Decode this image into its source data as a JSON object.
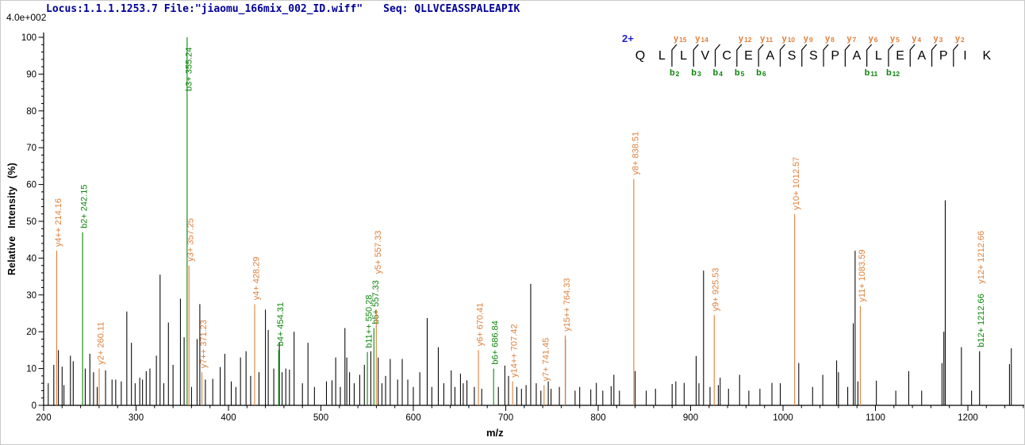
{
  "window": {
    "scale_label": "4.0e+002"
  },
  "header": {
    "locus_file": "Locus:1.1.1.1253.7 File:\"jiaomu_166mix_002_ID.wiff\"",
    "seq": "Seq: QLLVCEASSPALEAPIK"
  },
  "colors": {
    "y_ion": "#df7f3a",
    "b_ion": "#0b860b",
    "peak": "#000000",
    "header_text": "#000099",
    "charge_label": "#2222cc",
    "axis": "#000000"
  },
  "peptide_panel": {
    "charge_label": "2+",
    "residues": [
      "Q",
      "L",
      "L",
      "V",
      "C",
      "E",
      "A",
      "S",
      "S",
      "P",
      "A",
      "L",
      "E",
      "A",
      "P",
      "I",
      "K"
    ],
    "y_ion_gaps": [
      {
        "gap": 2,
        "ion": "y",
        "num": 15
      },
      {
        "gap": 3,
        "ion": "y",
        "num": 14
      },
      {
        "gap": 5,
        "ion": "y",
        "num": 12
      },
      {
        "gap": 6,
        "ion": "y",
        "num": 11
      },
      {
        "gap": 7,
        "ion": "y",
        "num": 10
      },
      {
        "gap": 8,
        "ion": "y",
        "num": 9
      },
      {
        "gap": 9,
        "ion": "y",
        "num": 8
      },
      {
        "gap": 10,
        "ion": "y",
        "num": 7
      },
      {
        "gap": 11,
        "ion": "y",
        "num": 6
      },
      {
        "gap": 12,
        "ion": "y",
        "num": 5
      },
      {
        "gap": 13,
        "ion": "y",
        "num": 4
      },
      {
        "gap": 14,
        "ion": "y",
        "num": 3
      },
      {
        "gap": 15,
        "ion": "y",
        "num": 2
      }
    ],
    "b_ion_gaps": [
      {
        "gap": 2,
        "ion": "b",
        "num": 2
      },
      {
        "gap": 3,
        "ion": "b",
        "num": 3
      },
      {
        "gap": 4,
        "ion": "b",
        "num": 4
      },
      {
        "gap": 5,
        "ion": "b",
        "num": 5
      },
      {
        "gap": 6,
        "ion": "b",
        "num": 6
      },
      {
        "gap": 11,
        "ion": "b",
        "num": 11
      },
      {
        "gap": 12,
        "ion": "b",
        "num": 12
      }
    ]
  },
  "chart_data": {
    "type": "bar",
    "xlabel": "m/z",
    "ylabel": "Relative Intensity (%)",
    "xlim": [
      200,
      1260
    ],
    "ylim": [
      0,
      100
    ],
    "x_tick_labels": [
      200,
      300,
      400,
      500,
      600,
      700,
      800,
      900,
      1000,
      1100,
      1200
    ],
    "y_tick_labels": [
      0,
      10,
      20,
      30,
      40,
      50,
      60,
      70,
      80,
      90,
      100
    ],
    "x_minor_tick_step": 20,
    "y_minor_tick_step": 2,
    "grid": false,
    "annotated_peaks": [
      {
        "label": "y4++ 214.16",
        "mz": 214.16,
        "intensity": 42,
        "series": "y"
      },
      {
        "label": "b2+ 242.15",
        "mz": 242.15,
        "intensity": 47,
        "series": "b"
      },
      {
        "label": "y2+ 260.11",
        "mz": 260.11,
        "intensity": 10,
        "series": "y"
      },
      {
        "label": "b3+ 355.24",
        "mz": 355.24,
        "intensity": 100,
        "series": "b",
        "label_dy": 73
      },
      {
        "label": "y3+ 357.25",
        "mz": 357.25,
        "intensity": 38,
        "series": "y"
      },
      {
        "label": "y7++ 371.23",
        "mz": 371.23,
        "intensity": 9,
        "series": "y"
      },
      {
        "label": "y4+ 428.29",
        "mz": 428.29,
        "intensity": 27.5,
        "series": "y"
      },
      {
        "label": "b4+ 454.31",
        "mz": 454.31,
        "intensity": 15,
        "series": "b"
      },
      {
        "label": "b11++ 550.28",
        "mz": 550.28,
        "intensity": 14.5,
        "series": "b"
      },
      {
        "label": "b5+ 557.33",
        "mz": 557.33,
        "intensity": 21,
        "series": "b"
      },
      {
        "label": "y5+ 557.33",
        "mz": 557.33,
        "intensity": 26,
        "series": "y",
        "x_offset": 3,
        "label_dy": -40
      },
      {
        "label": "y6+ 670.41",
        "mz": 670.41,
        "intensity": 15,
        "series": "y"
      },
      {
        "label": "b6+ 686.84",
        "mz": 686.84,
        "intensity": 10,
        "series": "b"
      },
      {
        "label": "y14++ 707.42",
        "mz": 707.42,
        "intensity": 6.5,
        "series": "y"
      },
      {
        "label": "y7+ 741.45",
        "mz": 741.45,
        "intensity": 5.5,
        "series": "y"
      },
      {
        "label": "y15++ 764.33",
        "mz": 764.33,
        "intensity": 19,
        "series": "y"
      },
      {
        "label": "y8+ 838.51",
        "mz": 838.51,
        "intensity": 61.5,
        "series": "y"
      },
      {
        "label": "y9+ 925.53",
        "mz": 925.53,
        "intensity": 24.5,
        "series": "y"
      },
      {
        "label": "y10+ 1012.57",
        "mz": 1012.57,
        "intensity": 52,
        "series": "y"
      },
      {
        "label": "y11+ 1083.59",
        "mz": 1083.59,
        "intensity": 27,
        "series": "y"
      },
      {
        "label": "b12+ 1212.66",
        "mz": 1212.66,
        "intensity": 14.7,
        "series": "b",
        "line_color": "#000000"
      },
      {
        "label": "y12+ 1212.66",
        "mz": 1212.66,
        "intensity": 14.7,
        "series": "y",
        "no_line": true,
        "label_dy": -80
      }
    ],
    "unannotated_peaks": [
      [
        205,
        6
      ],
      [
        211,
        11
      ],
      [
        216,
        15
      ],
      [
        220,
        10.5
      ],
      [
        222,
        5.5
      ],
      [
        229,
        13.5
      ],
      [
        232,
        12
      ],
      [
        245,
        10
      ],
      [
        250,
        14
      ],
      [
        254,
        9
      ],
      [
        258,
        5
      ],
      [
        267,
        9.5
      ],
      [
        274,
        7
      ],
      [
        278,
        7
      ],
      [
        284,
        6.5
      ],
      [
        290,
        25.5
      ],
      [
        295,
        17
      ],
      [
        299,
        6
      ],
      [
        304,
        7.5
      ],
      [
        307,
        7
      ],
      [
        311,
        9.3
      ],
      [
        315,
        10
      ],
      [
        322,
        13.5
      ],
      [
        326,
        35.5
      ],
      [
        330,
        6
      ],
      [
        335,
        22.5
      ],
      [
        340,
        11
      ],
      [
        348,
        29
      ],
      [
        352,
        18.5
      ],
      [
        360,
        5
      ],
      [
        366,
        18
      ],
      [
        369,
        27.5
      ],
      [
        375,
        7
      ],
      [
        383,
        7.2
      ],
      [
        391,
        10.4
      ],
      [
        396,
        14
      ],
      [
        403,
        6.5
      ],
      [
        408,
        5
      ],
      [
        413,
        13
      ],
      [
        419,
        14.7
      ],
      [
        424,
        8
      ],
      [
        433,
        9
      ],
      [
        440,
        26
      ],
      [
        443,
        20.5
      ],
      [
        449,
        10
      ],
      [
        455,
        17
      ],
      [
        458,
        9
      ],
      [
        462,
        10
      ],
      [
        466,
        9.7
      ],
      [
        471,
        20
      ],
      [
        480,
        6
      ],
      [
        486,
        17
      ],
      [
        493,
        5
      ],
      [
        506,
        6.5
      ],
      [
        512,
        6.8
      ],
      [
        516,
        13
      ],
      [
        521,
        5
      ],
      [
        526,
        21
      ],
      [
        528,
        13
      ],
      [
        531,
        9
      ],
      [
        536,
        6
      ],
      [
        542,
        8.3
      ],
      [
        547,
        11
      ],
      [
        554,
        14.7
      ],
      [
        562,
        13
      ],
      [
        566,
        6
      ],
      [
        570,
        8
      ],
      [
        575,
        12.6
      ],
      [
        583,
        7
      ],
      [
        588,
        12.6
      ],
      [
        594,
        7
      ],
      [
        600,
        5
      ],
      [
        607,
        9
      ],
      [
        615,
        23.7
      ],
      [
        620,
        5
      ],
      [
        627,
        15.8
      ],
      [
        633,
        6
      ],
      [
        641,
        9.5
      ],
      [
        645,
        5
      ],
      [
        651,
        8.6
      ],
      [
        654,
        6
      ],
      [
        658,
        6.8
      ],
      [
        666,
        5
      ],
      [
        674,
        4.5
      ],
      [
        692,
        5
      ],
      [
        699,
        10.8
      ],
      [
        703,
        8
      ],
      [
        712,
        5
      ],
      [
        717,
        4.5
      ],
      [
        722,
        5.5
      ],
      [
        727,
        33
      ],
      [
        733,
        6
      ],
      [
        738,
        4
      ],
      [
        746,
        6.5
      ],
      [
        749,
        4.5
      ],
      [
        758,
        5
      ],
      [
        764.5,
        18
      ],
      [
        775,
        4
      ],
      [
        780,
        5
      ],
      [
        792,
        4.3
      ],
      [
        798,
        6.1
      ],
      [
        805,
        4
      ],
      [
        814,
        5.2
      ],
      [
        817,
        8.3
      ],
      [
        823,
        4
      ],
      [
        840,
        9.3
      ],
      [
        852,
        4
      ],
      [
        862,
        4.5
      ],
      [
        880,
        5.8
      ],
      [
        884,
        6.5
      ],
      [
        893,
        6.1
      ],
      [
        906,
        13.4
      ],
      [
        909,
        6
      ],
      [
        914,
        36.6
      ],
      [
        921,
        5
      ],
      [
        930,
        5.5
      ],
      [
        932,
        7.5
      ],
      [
        941,
        4.5
      ],
      [
        953,
        8.3
      ],
      [
        963,
        4
      ],
      [
        975,
        4.5
      ],
      [
        988,
        6.1
      ],
      [
        997,
        6
      ],
      [
        1017,
        11.5
      ],
      [
        1032,
        5
      ],
      [
        1043,
        8.3
      ],
      [
        1058,
        12.2
      ],
      [
        1060,
        9
      ],
      [
        1070,
        5
      ],
      [
        1076,
        22.3
      ],
      [
        1078,
        42
      ],
      [
        1081,
        6.5
      ],
      [
        1101,
        6.7
      ],
      [
        1122,
        4
      ],
      [
        1136,
        9.3
      ],
      [
        1150,
        4
      ],
      [
        1172,
        11.5
      ],
      [
        1174,
        20
      ],
      [
        1175.5,
        55.7
      ],
      [
        1193,
        15.8
      ],
      [
        1204,
        4
      ],
      [
        1245,
        11.2
      ],
      [
        1247,
        15.5
      ]
    ]
  }
}
